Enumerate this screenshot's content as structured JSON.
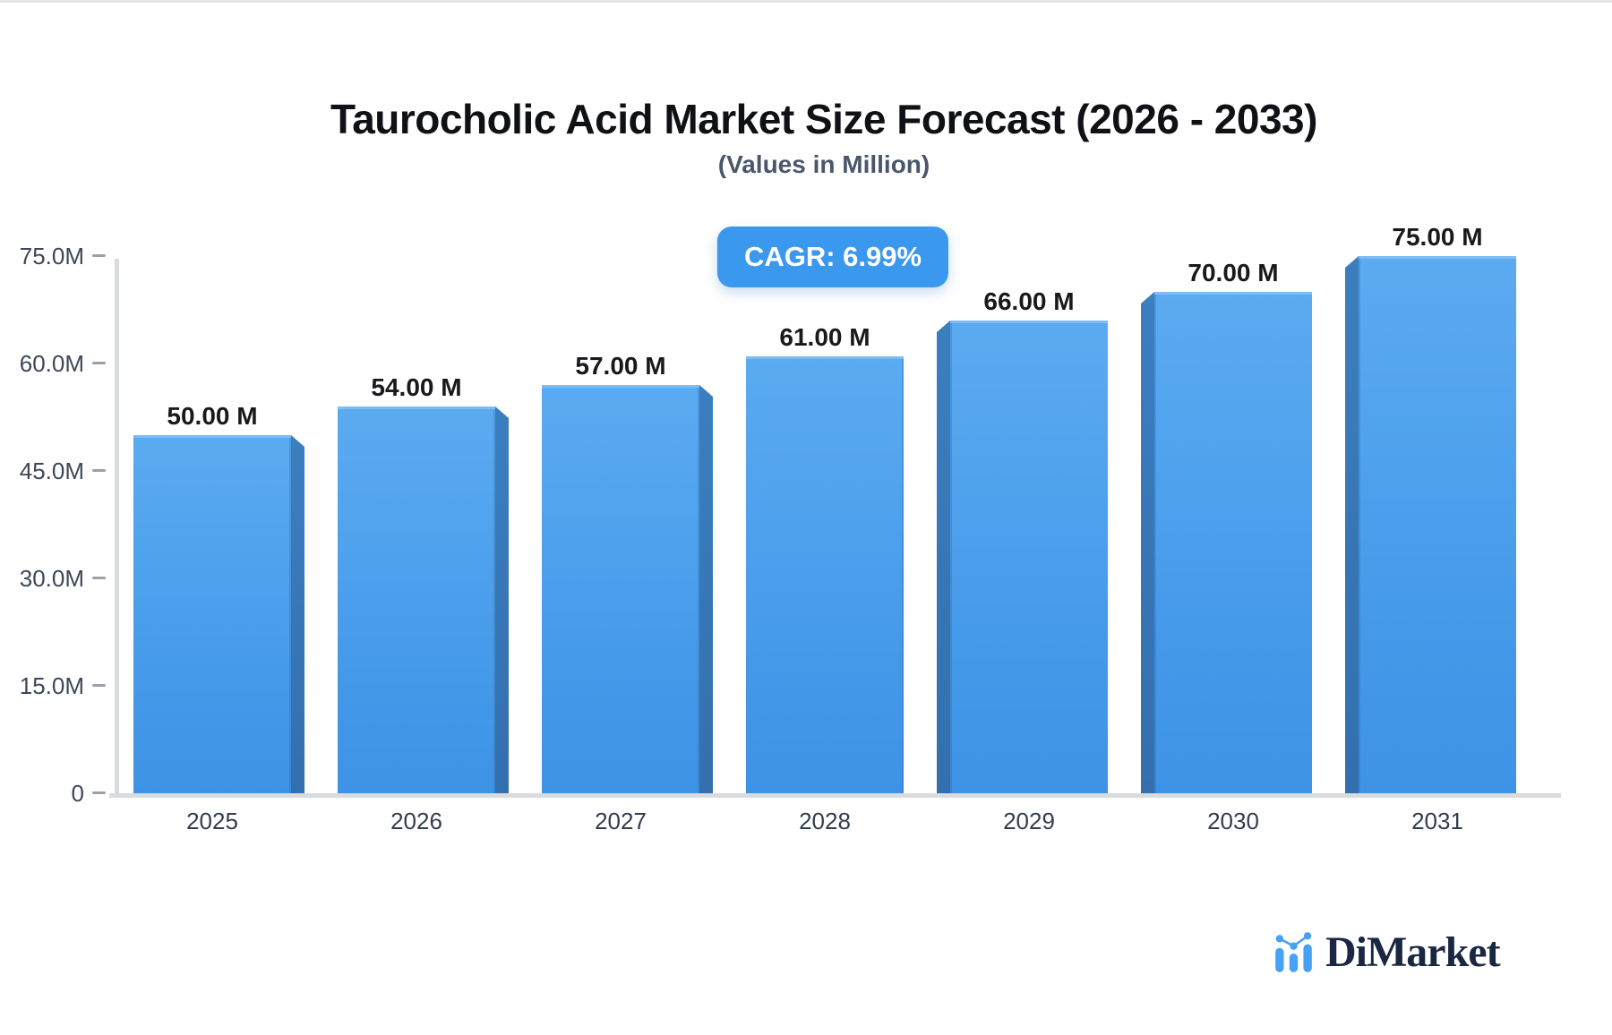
{
  "brand": {
    "name": "DiMarket"
  },
  "colors": {
    "accent_blue": "#3b98ef",
    "bar_body_top": "#5babf1",
    "bar_body_bottom": "#3e93e6",
    "bar_side_face": "#336fae",
    "bar_top_edge": "#7fbcf4",
    "axis_line": "#d9dcdf",
    "tick_dash": "#9aa1ab",
    "label_dark": "#17191c",
    "label_slate": "#3d4757",
    "logo_navy": "#1a2742"
  },
  "chart_data": {
    "type": "bar",
    "title": "Taurocholic Acid Market Size Forecast (2026 - 2033)",
    "subtitle": "(Values in Million)",
    "annotation": "CAGR: 6.99%",
    "categories": [
      "2025",
      "2026",
      "2027",
      "2028",
      "2029",
      "2030",
      "2031"
    ],
    "values": [
      50,
      54,
      57,
      61,
      66,
      70,
      75
    ],
    "value_labels": [
      "50.00 M",
      "54.00 M",
      "57.00 M",
      "61.00 M",
      "66.00 M",
      "70.00 M",
      "75.00 M"
    ],
    "unit": "Million",
    "ylim": [
      0,
      75
    ],
    "yticks": [
      {
        "v": 75,
        "label": "75.0M"
      },
      {
        "v": 60,
        "label": "60.0M"
      },
      {
        "v": 45,
        "label": "45.0M"
      },
      {
        "v": 30,
        "label": "30.0M"
      },
      {
        "v": 15,
        "label": "15.0M"
      },
      {
        "v": 0,
        "label": "0"
      }
    ],
    "grid": false,
    "legend": false,
    "bar_style": "3d-beveled, side faces angled toward center bar"
  }
}
